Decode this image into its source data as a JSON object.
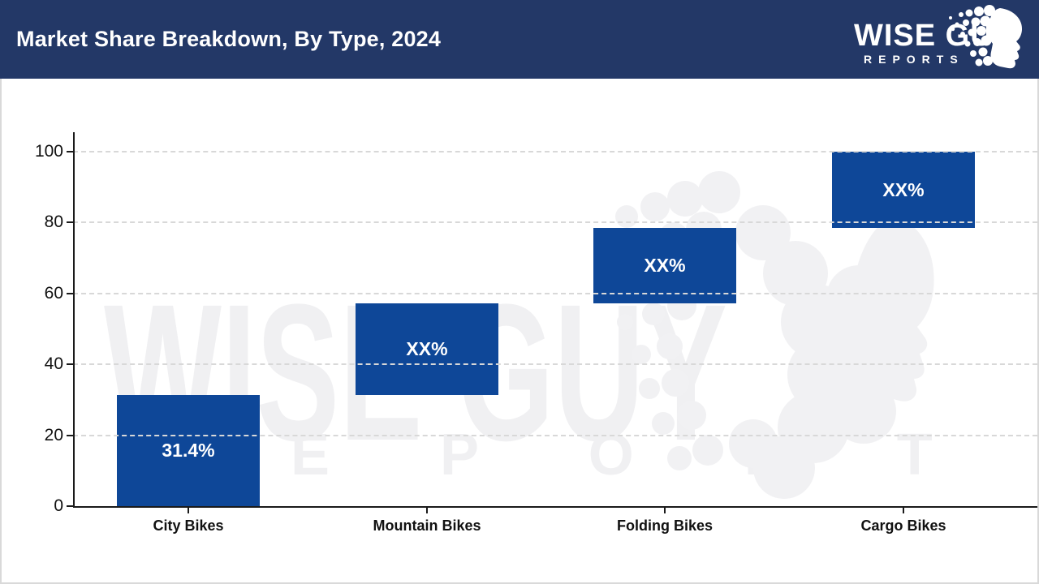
{
  "header": {
    "title": "Market Share Breakdown, By Type, 2024",
    "logo": {
      "line1": "WISE GUY",
      "line2": "R E P O R T S"
    }
  },
  "watermark": {
    "line1": "WISE GUY",
    "line2": "R E P O R T S"
  },
  "chart_data": {
    "type": "bar",
    "variant": "waterfall",
    "title": "Market Share Breakdown, By Type, 2024",
    "categories": [
      "City Bikes",
      "Mountain Bikes",
      "Folding Bikes",
      "Cargo Bikes"
    ],
    "values": [
      31.4,
      25.9,
      21.1,
      21.6
    ],
    "segments": [
      {
        "category": "City Bikes",
        "start": 0,
        "end": 31.4,
        "label": "31.4%"
      },
      {
        "category": "Mountain Bikes",
        "start": 31.4,
        "end": 57.3,
        "label": "XX%"
      },
      {
        "category": "Folding Bikes",
        "start": 57.3,
        "end": 78.4,
        "label": "XX%"
      },
      {
        "category": "Cargo Bikes",
        "start": 78.4,
        "end": 100,
        "label": "XX%"
      }
    ],
    "yticks": [
      0,
      20,
      40,
      60,
      80,
      100
    ],
    "ylim": [
      0,
      105
    ],
    "xlabel": "",
    "ylabel": "",
    "legend_position": "none",
    "grid": "horizontal-dashed"
  },
  "colors": {
    "header_bg": "#233867",
    "bar": "#0e4798",
    "axis": "#1a1a1a",
    "gridline": "#d8d8d8",
    "watermark": "#f0f0f2",
    "border": "#d9d9d9",
    "title_text": "#ffffff",
    "bar_label_text": "#ffffff"
  }
}
